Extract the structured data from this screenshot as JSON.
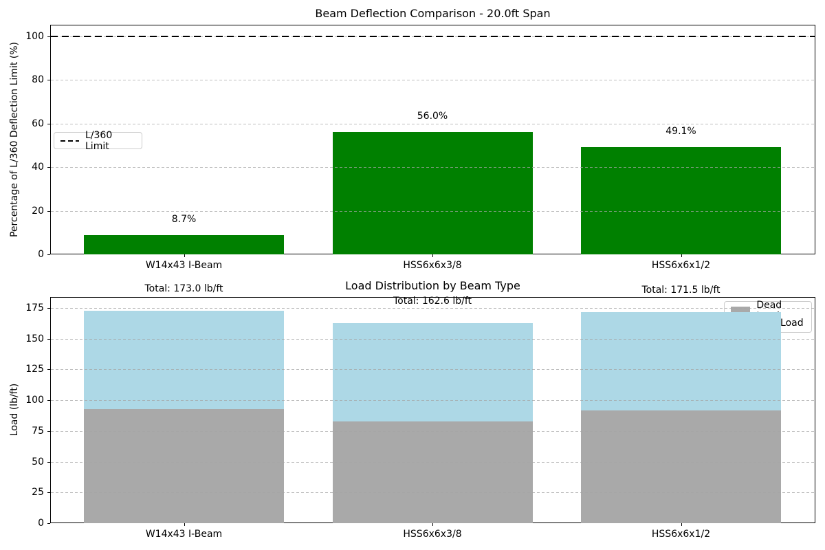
{
  "chart_data": [
    {
      "type": "bar",
      "title": "Beam Deflection Comparison - 20.0ft Span",
      "ylabel": "Percentage of L/360 Deflection Limit (%)",
      "xlabel": "",
      "categories": [
        "W14x43 I-Beam",
        "HSS6x6x3/8",
        "HSS6x6x1/2"
      ],
      "values": [
        8.7,
        56.0,
        49.1
      ],
      "value_labels": [
        "8.7%",
        "56.0%",
        "49.1%"
      ],
      "bar_color": "#008000",
      "yticks": [
        0,
        20,
        40,
        60,
        80,
        100
      ],
      "ylim": [
        0,
        105.4
      ],
      "grid": true,
      "ref_line": {
        "value": 100,
        "label": "L/360 Limit",
        "color": "#000000",
        "style": "dashed"
      },
      "legend_position": "center-left"
    },
    {
      "type": "stacked-bar",
      "title": "Load Distribution by Beam Type",
      "ylabel": "Load (lb/ft)",
      "xlabel": "",
      "categories": [
        "W14x43 I-Beam",
        "HSS6x6x3/8",
        "HSS6x6x1/2"
      ],
      "series": [
        {
          "name": "Dead Load",
          "color": "#a9a9a9",
          "values": [
            93.0,
            82.6,
            91.5
          ]
        },
        {
          "name": "Live Load",
          "color": "#add8e6",
          "values": [
            80.0,
            80.0,
            80.0
          ]
        }
      ],
      "totals": [
        173.0,
        162.6,
        171.5
      ],
      "total_labels": [
        "Total: 173.0 lb/ft",
        "Total: 162.6 lb/ft",
        "Total: 171.5 lb/ft"
      ],
      "yticks": [
        0,
        25,
        50,
        75,
        100,
        125,
        150,
        175
      ],
      "ylim": [
        0,
        183.9
      ],
      "grid": true,
      "legend_position": "top-right"
    }
  ]
}
